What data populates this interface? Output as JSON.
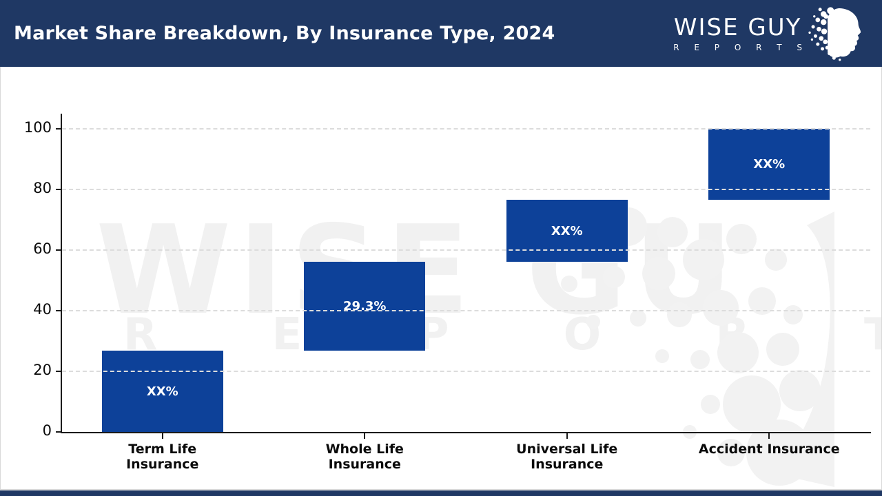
{
  "header": {
    "title": "Market Share Breakdown, By Insurance Type, 2024",
    "logo": {
      "line1": "WISE GUY",
      "line2": "R E P O R T S"
    }
  },
  "watermark": {
    "line1": "WISE GU",
    "line2": "R E P O R T S"
  },
  "colors": {
    "header_bg": "#1f3864",
    "bar": "#0d4199",
    "bar_label": "#ffffff",
    "axis": "#1a1a1a",
    "gridline": "#dcdcdc",
    "watermark": "#f1f1f1",
    "footer_bar": "#1f3864"
  },
  "chart_data": {
    "type": "bar",
    "subtype": "waterfall",
    "title": "Market Share Breakdown, By Insurance Type, 2024",
    "categories": [
      "Term Life\nInsurance",
      "Whole Life\nInsurance",
      "Universal Life\nInsurance",
      "Accident Insurance"
    ],
    "bars": [
      {
        "category": "Term Life\nInsurance",
        "start": 0,
        "end": 26.8,
        "value_label": "XX%"
      },
      {
        "category": "Whole Life\nInsurance",
        "start": 26.8,
        "end": 56.1,
        "value_label": "29.3%"
      },
      {
        "category": "Universal Life\nInsurance",
        "start": 56.1,
        "end": 76.6,
        "value_label": "XX%"
      },
      {
        "category": "Accident Insurance",
        "start": 76.6,
        "end": 100,
        "value_label": "XX%"
      }
    ],
    "yticks": [
      0,
      20,
      40,
      60,
      80,
      100
    ],
    "ylim": [
      0,
      105
    ],
    "xlabel": "",
    "ylabel": "",
    "grid": "dashed-horizontal",
    "legend": "none"
  }
}
